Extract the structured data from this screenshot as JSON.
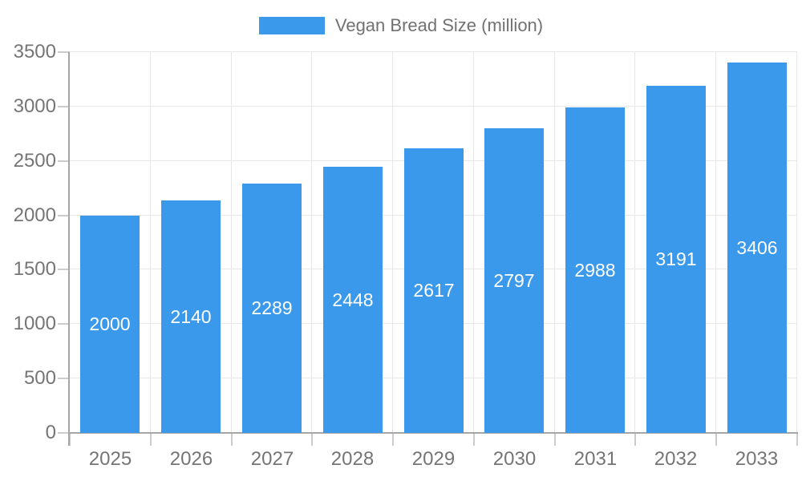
{
  "chart_data": {
    "type": "bar",
    "title": "",
    "legend": {
      "label": "Vegan Bread Size (million)",
      "position": "top"
    },
    "categories": [
      "2025",
      "2026",
      "2027",
      "2028",
      "2029",
      "2030",
      "2031",
      "2032",
      "2033"
    ],
    "series": [
      {
        "name": "Vegan Bread Size (million)",
        "values": [
          2000,
          2140,
          2289,
          2448,
          2617,
          2797,
          2988,
          3191,
          3406
        ]
      }
    ],
    "xlabel": "",
    "ylabel": "",
    "ylim": [
      0,
      3500
    ],
    "y_ticks": [
      0,
      500,
      1000,
      1500,
      2000,
      2500,
      3000,
      3500
    ],
    "grid": true,
    "value_labels_position": "inside-center",
    "colors": {
      "bar": "#3B99EC",
      "value_label": "#ffffff",
      "axis_label": "#757575",
      "legend_text": "#717171",
      "gridline": "#e7e7e7",
      "tick": "#cccccc",
      "axis_line": "#a6a6a6",
      "background": "#ffffff"
    }
  }
}
